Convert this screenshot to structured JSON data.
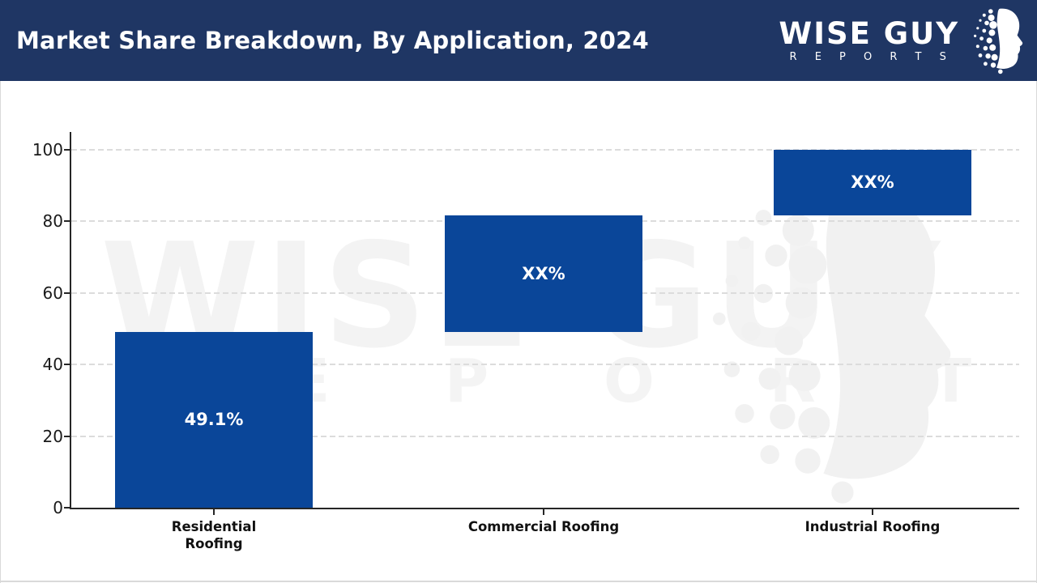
{
  "header": {
    "title": "Market Share Breakdown, By Application, 2024",
    "logo_line1": "WISE GUY",
    "logo_line2": "R E P O R T S"
  },
  "watermark": {
    "line1": "WISE GUY",
    "line2": "R E P O R T S"
  },
  "colors": {
    "header_bg": "#1f3664",
    "bar": "#0a4699",
    "bar_label": "#ffffff",
    "gridline": "#dcdcdc",
    "axis": "#262626"
  },
  "chart_data": {
    "type": "bar",
    "variant": "waterfall",
    "title": "Market Share Breakdown, By Application, 2024",
    "categories": [
      "Residential Roofing",
      "Commercial Roofing",
      "Industrial Roofing"
    ],
    "category_display": [
      "Residential\nRoofing",
      "Commercial Roofing",
      "Industrial Roofing"
    ],
    "segments": [
      {
        "category": "Residential Roofing",
        "start": 0,
        "end": 49.1,
        "label": "49.1%"
      },
      {
        "category": "Commercial Roofing",
        "start": 49.1,
        "end": 81.7,
        "label": "XX%"
      },
      {
        "category": "Industrial Roofing",
        "start": 81.7,
        "end": 100,
        "label": "XX%"
      }
    ],
    "xlabel": "",
    "ylabel": "",
    "yticks": [
      0,
      20,
      40,
      60,
      80,
      100
    ],
    "ylim": [
      0,
      104.5
    ],
    "grid": "horizontal-dashed",
    "legend": "none"
  }
}
